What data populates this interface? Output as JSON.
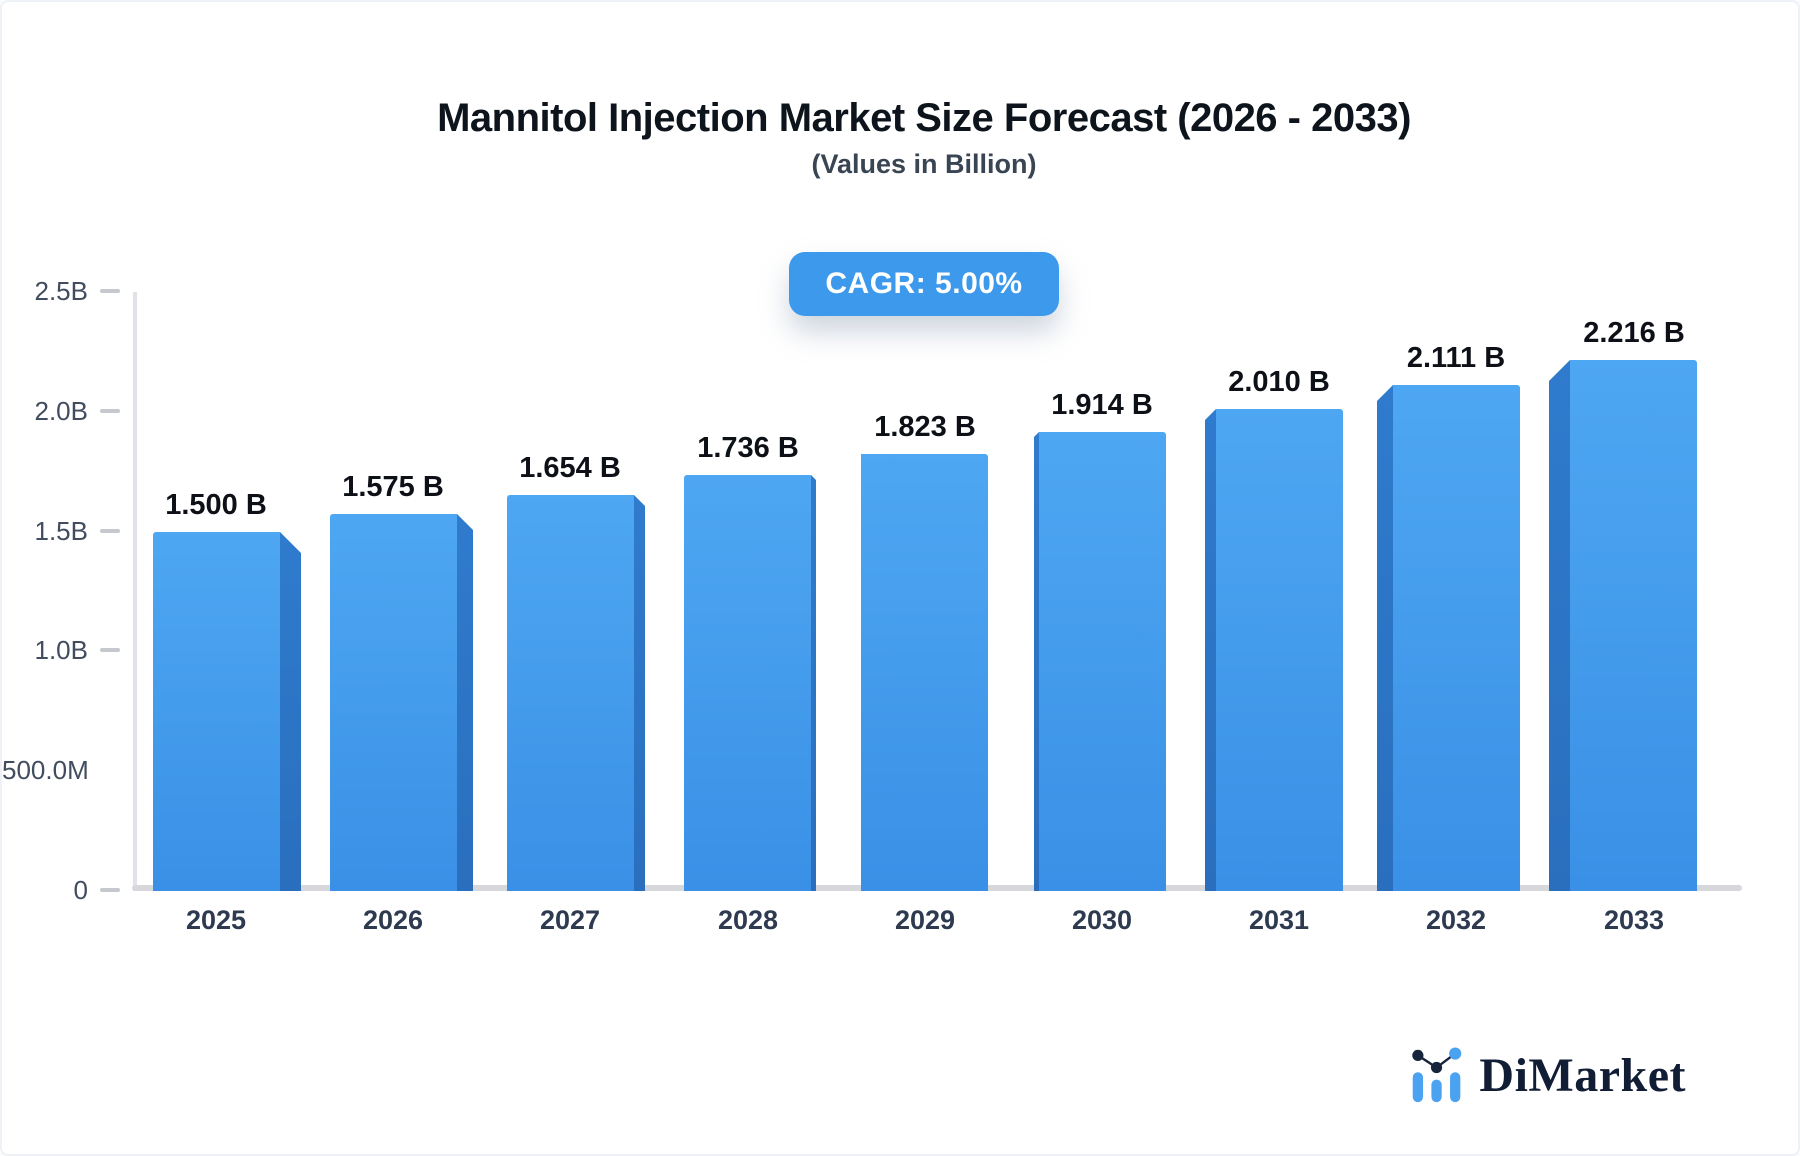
{
  "header": {
    "title": "Mannitol Injection Market Size Forecast (2026 - 2033)",
    "subtitle": "(Values in Billion)",
    "cagr_badge": "CAGR: 5.00%"
  },
  "chart_data": {
    "type": "bar",
    "title": "Mannitol Injection Market Size Forecast (2026 - 2033)",
    "subtitle": "(Values in Billion)",
    "annotation": "CAGR: 5.00%",
    "categories": [
      "2025",
      "2026",
      "2027",
      "2028",
      "2029",
      "2030",
      "2031",
      "2032",
      "2033"
    ],
    "values": [
      1.5,
      1.575,
      1.654,
      1.736,
      1.823,
      1.914,
      2.01,
      2.111,
      2.216
    ],
    "value_labels": [
      "1.500 B",
      "1.575 B",
      "1.654 B",
      "1.736 B",
      "1.823 B",
      "1.914 B",
      "2.010 B",
      "2.111 B",
      "2.216 B"
    ],
    "unit_suffix": "B",
    "xlabel": "",
    "ylabel": "",
    "ylim": [
      0,
      2.5
    ],
    "yticks": [
      {
        "label": "0",
        "value": 0.0,
        "dash": true
      },
      {
        "label": "500.0M",
        "value": 0.5,
        "dash": false
      },
      {
        "label": "1.0B",
        "value": 1.0,
        "dash": true
      },
      {
        "label": "1.5B",
        "value": 1.5,
        "dash": true
      },
      {
        "label": "2.0B",
        "value": 2.0,
        "dash": true
      },
      {
        "label": "2.5B",
        "value": 2.5,
        "dash": true
      }
    ],
    "grid": false,
    "legend": "none",
    "bar_color": "#3f9bed",
    "bar_side_color": "#2c74c4",
    "badge_color": "#3d99ec"
  },
  "footer": {
    "logo_text": "DiMarket",
    "logo_icon": "bar-chart-logo-icon"
  }
}
